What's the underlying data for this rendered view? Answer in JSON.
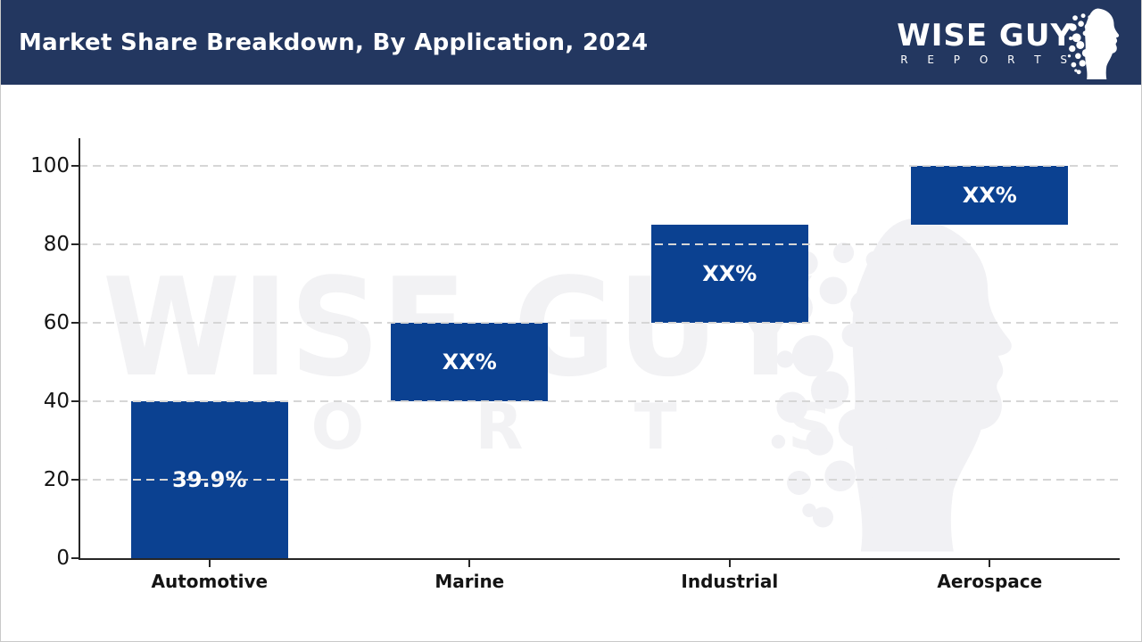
{
  "header": {
    "title": "Market Share Breakdown, By Application, 2024",
    "logo_line1": "WISE GUY",
    "logo_line2": "R E P O R T S"
  },
  "watermark": {
    "line1": "WISE GUY",
    "line2": "P O R T S"
  },
  "colors": {
    "header_bg": "#233760",
    "bar_blue": "#0b4191",
    "grid_gray": "#d6d6d6",
    "axis_black": "#262626",
    "watermark_gray": "#f1f1f4"
  },
  "chart_data": {
    "type": "bar",
    "subtype": "waterfall",
    "title": "Market Share Breakdown, By Application, 2024",
    "categories": [
      "Automotive",
      "Marine",
      "Industrial",
      "Aerospace"
    ],
    "segments": [
      {
        "category": "Automotive",
        "start": 0,
        "end": 39.9,
        "label": "39.9%"
      },
      {
        "category": "Marine",
        "start": 39.9,
        "end": 59.9,
        "label": "XX%"
      },
      {
        "category": "Industrial",
        "start": 59.9,
        "end": 85.0,
        "label": "XX%"
      },
      {
        "category": "Aerospace",
        "start": 85.0,
        "end": 100.0,
        "label": "XX%"
      }
    ],
    "xlabel": "",
    "ylabel": "",
    "yticks": [
      0,
      20,
      40,
      60,
      80,
      100
    ],
    "ylim": [
      0,
      106
    ],
    "grid": true,
    "grid_style": "dashed",
    "grid_above_bars": true,
    "legend": "none",
    "bar_color": "#0b4191"
  }
}
